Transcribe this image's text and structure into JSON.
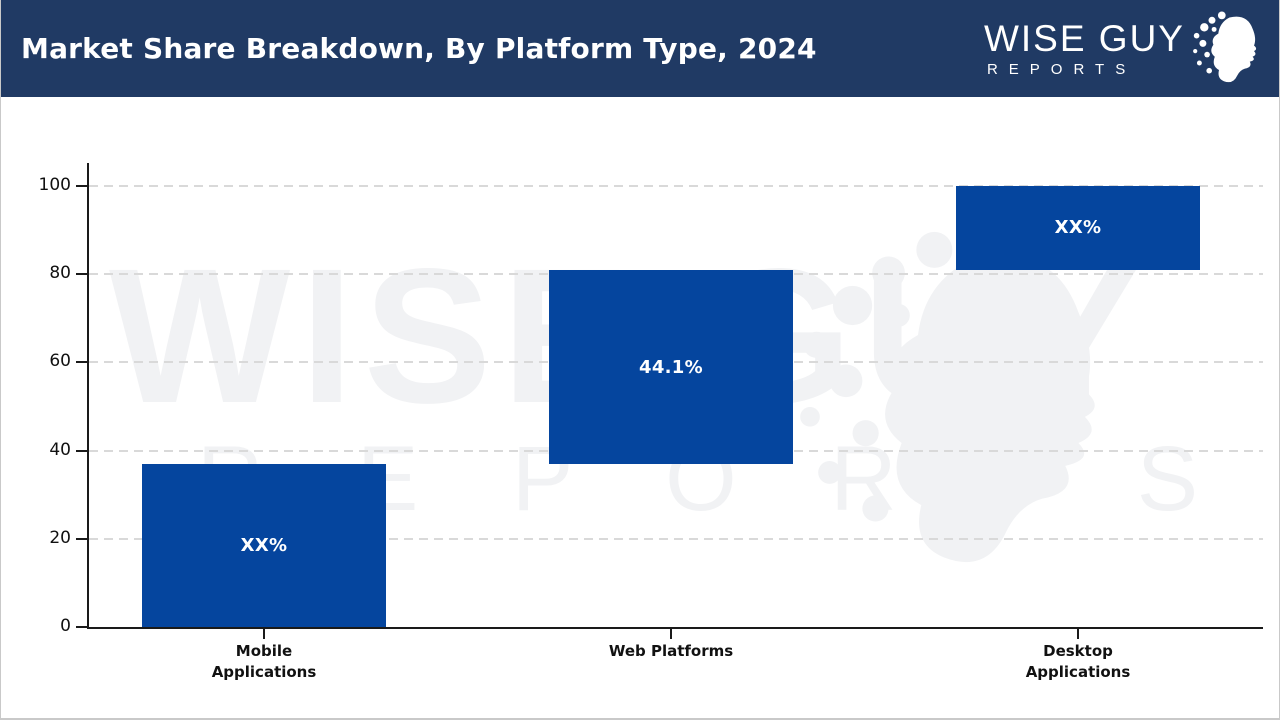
{
  "header": {
    "title": "Market Share Breakdown, By Platform Type, 2024",
    "bg_color": "#203A64",
    "brand": {
      "name": "WISE GUY",
      "sub": "REPORTS"
    }
  },
  "watermark": {
    "line1": "WISE GUY",
    "line2": "R E P O R T S"
  },
  "chart_data": {
    "type": "bar",
    "variant": "waterfall",
    "title": "Market Share Breakdown, By Platform Type, 2024",
    "categories": [
      "Mobile Applications",
      "Web Platforms",
      "Desktop Applications"
    ],
    "categories_lines": [
      [
        "Mobile",
        "Applications"
      ],
      [
        "Web Platforms"
      ],
      [
        "Desktop",
        "Applications"
      ]
    ],
    "segments": [
      {
        "category": "Mobile Applications",
        "start": 0,
        "end": 36.9,
        "label": "XX%"
      },
      {
        "category": "Web Platforms",
        "start": 36.9,
        "end": 81.0,
        "label": "44.1%"
      },
      {
        "category": "Desktop Applications",
        "start": 81.0,
        "end": 100,
        "label": "XX%"
      }
    ],
    "y_ticks": [
      0,
      20,
      40,
      60,
      80,
      100
    ],
    "ylim": [
      0,
      100
    ],
    "xlabel": "",
    "ylabel": "",
    "legend": "none",
    "grid": "horizontal-dashed",
    "bar_color": "#05459E",
    "bar_label_color": "#FFFFFF",
    "axis_color": "#1a1a1a"
  }
}
